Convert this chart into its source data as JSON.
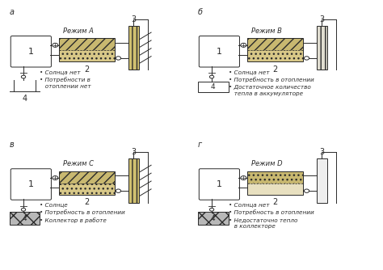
{
  "panels": [
    {
      "label": "а",
      "mode": "Режим A",
      "bullets": [
        "• Солнца нет",
        "• Потребности в\n   отоплении нет"
      ],
      "has_sun_rays": true,
      "acc_hatch": "///",
      "acc_lower_hatch": "...",
      "col_hatch": "|||",
      "comp4_style": "bar",
      "pipe_top_active": false,
      "pipe_bot_active": false
    },
    {
      "label": "б",
      "mode": "Режим B",
      "bullets": [
        "• Солнца нет",
        "• Потребность в отоплении",
        "• Достаточное количество\n   тепла в аккумуляторе"
      ],
      "has_sun_rays": false,
      "acc_hatch": "///",
      "acc_lower_hatch": "...",
      "col_hatch": "|||",
      "comp4_style": "box",
      "pipe_top_active": true,
      "pipe_bot_active": false
    },
    {
      "label": "в",
      "mode": "Режим C",
      "bullets": [
        "• Солнце",
        "• Потребность в отоплении",
        "• Коллектор в работе"
      ],
      "has_sun_rays": true,
      "acc_hatch": "///",
      "acc_lower_hatch": "...",
      "col_hatch": "|||",
      "comp4_style": "hatched_box",
      "pipe_top_active": false,
      "pipe_bot_active": true
    },
    {
      "label": "г",
      "mode": "Режим D",
      "bullets": [
        "• Солнца нет",
        "• Потребность в отоплении",
        "• Недостаточно тепло\n   в коллекторе"
      ],
      "has_sun_rays": false,
      "acc_hatch": "...",
      "acc_lower_hatch": "",
      "col_hatch": "",
      "comp4_style": "hatched_box",
      "pipe_top_active": true,
      "pipe_bot_active": false
    }
  ]
}
